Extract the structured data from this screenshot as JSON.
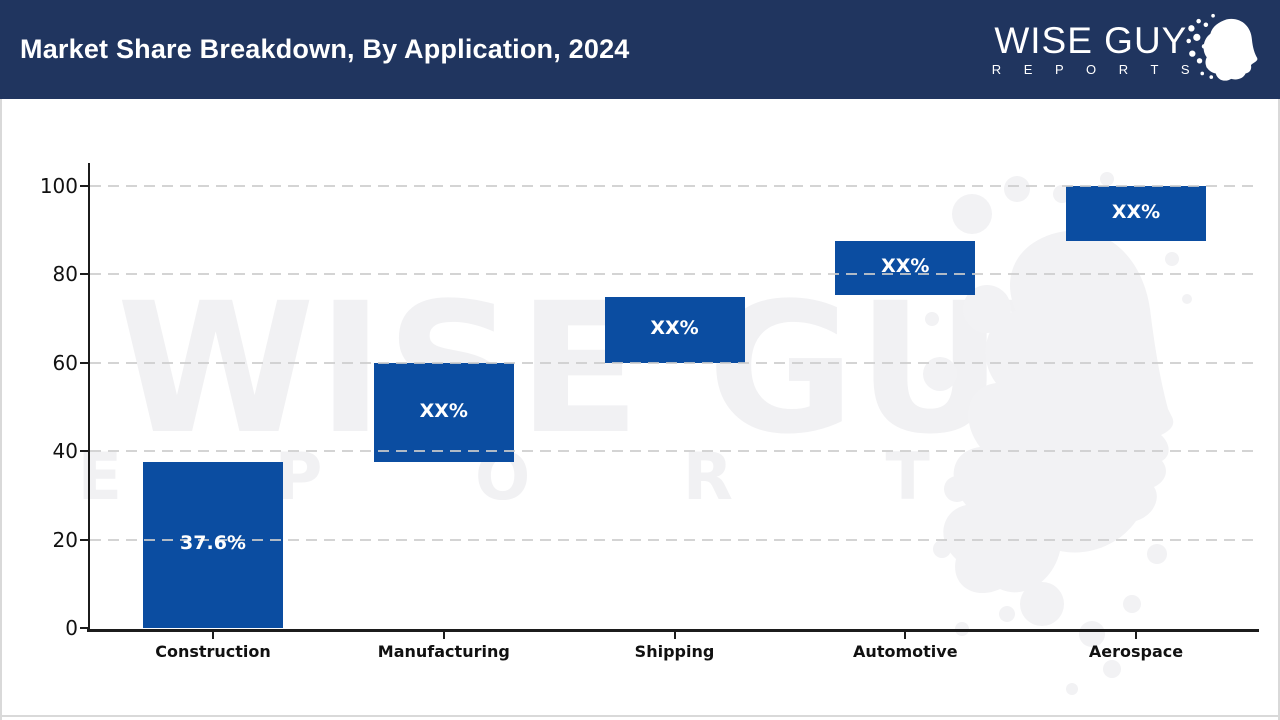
{
  "header": {
    "title": "Market Share Breakdown, By Application, 2024",
    "logo": {
      "line1": "WISE GUY",
      "line2": "R E P O R T S"
    }
  },
  "watermark": {
    "line1": "WISE GUY",
    "line2": "R E P O R T S"
  },
  "colors": {
    "header_bg": "#20355f",
    "bar": "#0b4da1",
    "bar_label": "#ffffff",
    "gridline": "#d5d5d5",
    "axis": "#1c1c1c"
  },
  "chart_data": {
    "type": "bar",
    "subtype": "waterfall-floating-bars",
    "title": "Market Share Breakdown, By Application, 2024",
    "xlabel": "",
    "ylabel": "",
    "categories": [
      "Construction",
      "Manufacturing",
      "Shipping",
      "Automotive",
      "Aerospace"
    ],
    "segments": [
      {
        "category": "Construction",
        "start": 0,
        "end": 37.6,
        "label": "37.6%"
      },
      {
        "category": "Manufacturing",
        "start": 37.6,
        "end": 59.9,
        "label": "XX%"
      },
      {
        "category": "Shipping",
        "start": 59.9,
        "end": 74.9,
        "label": "XX%"
      },
      {
        "category": "Automotive",
        "start": 75.4,
        "end": 87.5,
        "label": "XX%"
      },
      {
        "category": "Aerospace",
        "start": 87.5,
        "end": 100,
        "label": "XX%"
      }
    ],
    "yticks": [
      0,
      20,
      40,
      60,
      80,
      100
    ],
    "ylim": [
      0,
      105
    ],
    "grid": "horizontal-dashed",
    "legend": "none"
  }
}
